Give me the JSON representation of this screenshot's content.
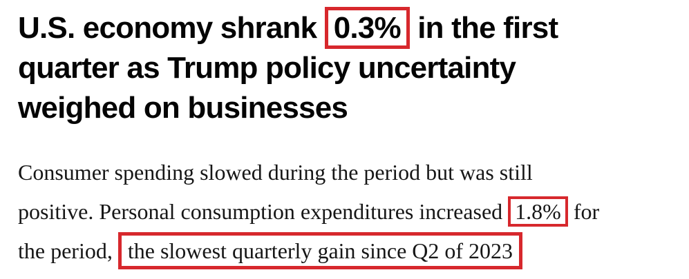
{
  "article": {
    "headline": {
      "seg1": "U.S. economy shrank ",
      "highlight1": "0.3%",
      "seg2": " in the first",
      "seg3": "quarter as Trump policy uncertainty",
      "seg4": "weighed on businesses"
    },
    "body": {
      "seg1": "Consumer spending slowed during the period but was still",
      "seg2": "positive. Personal consumption expenditures increased ",
      "highlight1": "1.8%",
      "seg3": " for",
      "seg4": "the period, ",
      "highlight2": "the slowest quarterly gain since Q2 of 2023"
    }
  },
  "annotation": {
    "box_color": "#d7282d"
  },
  "colors": {
    "headline_text": "#040404",
    "body_text": "#161616",
    "background": "#ffffff"
  }
}
